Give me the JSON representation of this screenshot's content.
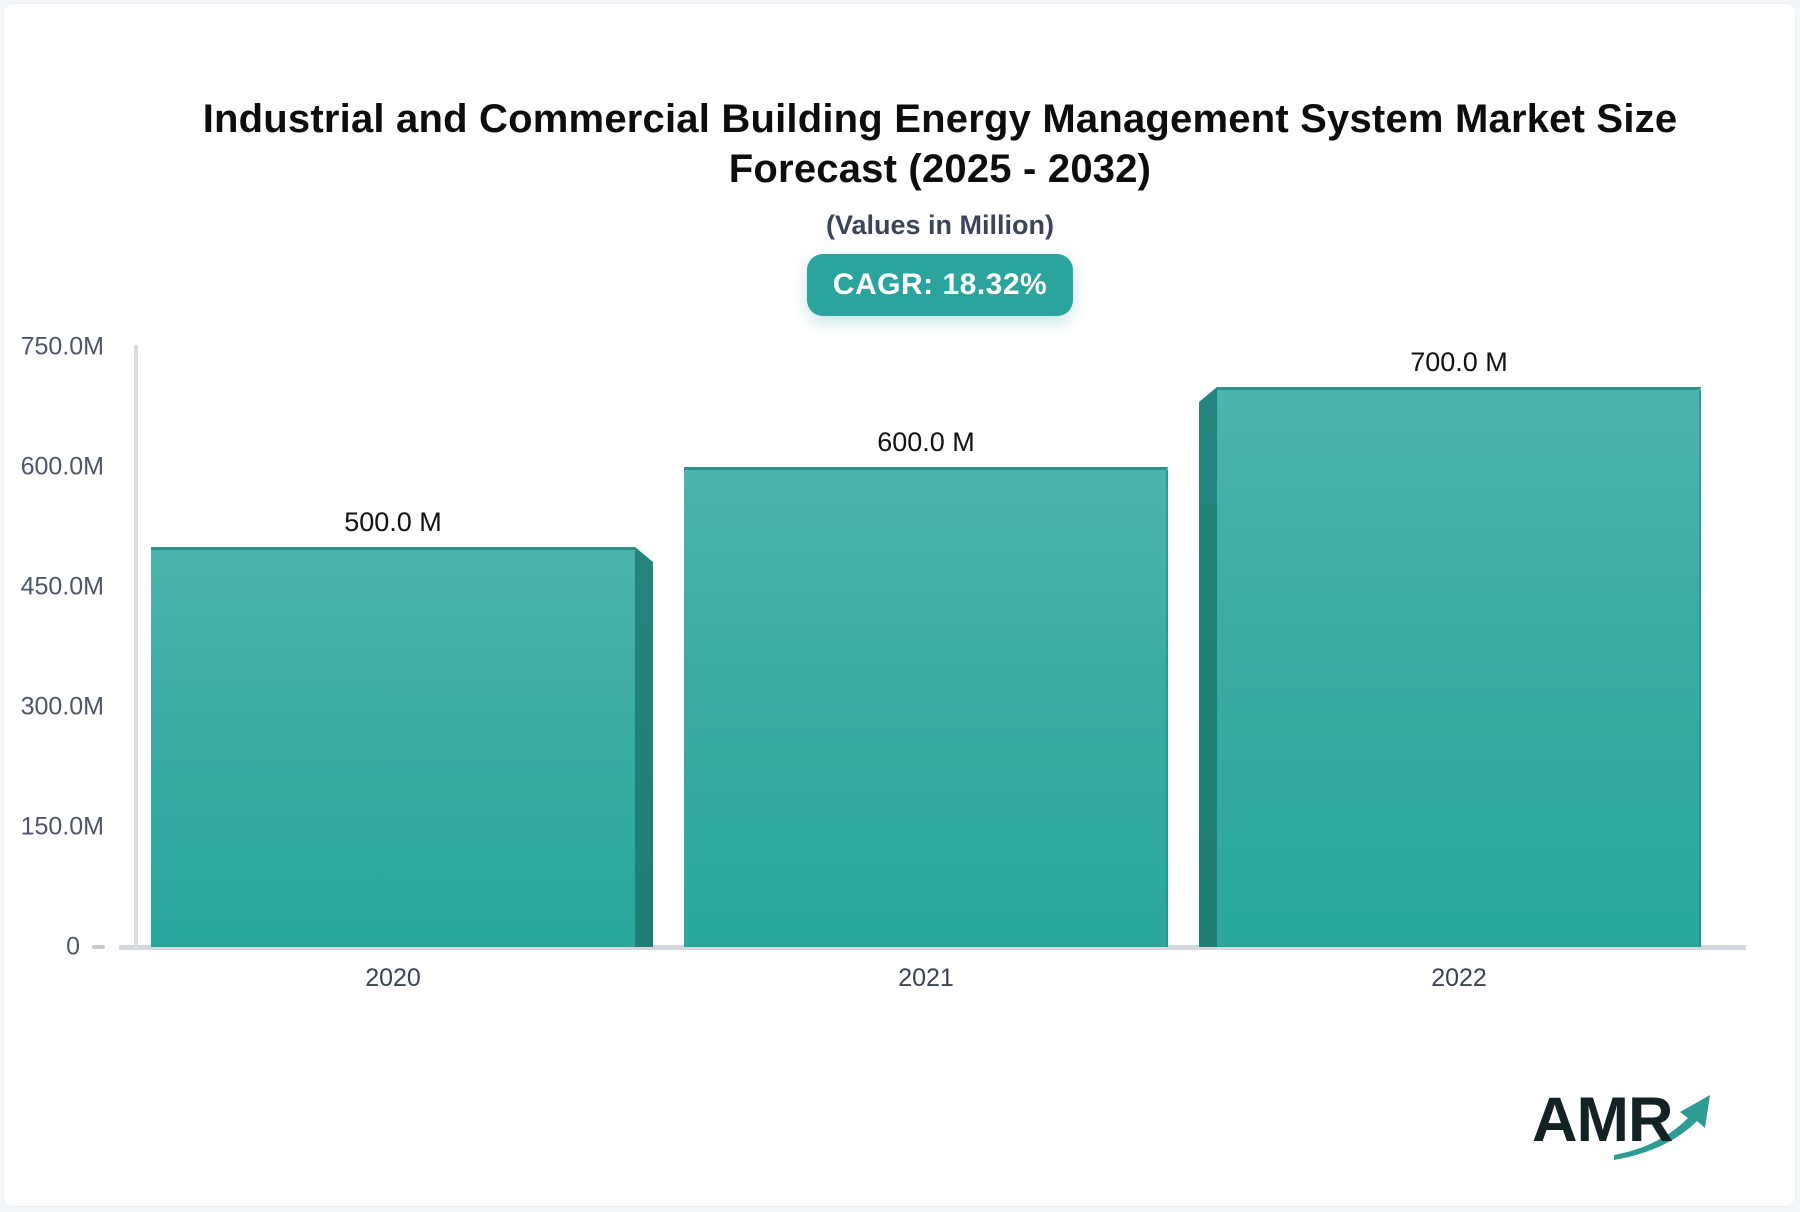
{
  "page": {
    "background": "#f4f7fa",
    "card_background": "#ffffff"
  },
  "header": {
    "title_line1": "Industrial and Commercial Building Energy Management System Market Size",
    "title_line2": "Forecast (2025 - 2032)",
    "subtitle": "(Values in Million)",
    "cagr_badge": "CAGR: 18.32%"
  },
  "chart_data": {
    "type": "bar",
    "title": "Industrial and Commercial Building Energy Management System Market Size Forecast (2025 - 2032)",
    "subtitle": "(Values in Million)",
    "cagr_percent": 18.32,
    "categories": [
      "2020",
      "2021",
      "2022"
    ],
    "values": [
      500.0,
      600.0,
      700.0
    ],
    "value_labels": [
      "500.0 M",
      "600.0 M",
      "700.0 M"
    ],
    "unit": "Million",
    "ylim": [
      0,
      750
    ],
    "yticks": [
      {
        "label": "750.0M",
        "value": 750
      },
      {
        "label": "600.0M",
        "value": 600
      },
      {
        "label": "450.0M",
        "value": 450
      },
      {
        "label": "300.0M",
        "value": 300
      },
      {
        "label": "150.0M",
        "value": 150
      },
      {
        "label": "0",
        "value": 0
      }
    ],
    "grid": false,
    "legend": false,
    "bar_style": {
      "top_color": "#4cb4ac",
      "bottom_color": "#29a89c",
      "border_color": "#2e918a",
      "bevel_color": "#1f7d75",
      "bevel": [
        "right",
        "none",
        "left"
      ]
    }
  },
  "logo": {
    "text": "AMR",
    "text_color": "#132325",
    "arrow_color": "#2d9c93"
  },
  "colors": {
    "accent_teal": "#2aa49c",
    "axis_gray": "#d3d7de",
    "tick_text": "#4e5669",
    "subtitle_text": "#3c4557",
    "title_text": "#0d0d0d"
  }
}
